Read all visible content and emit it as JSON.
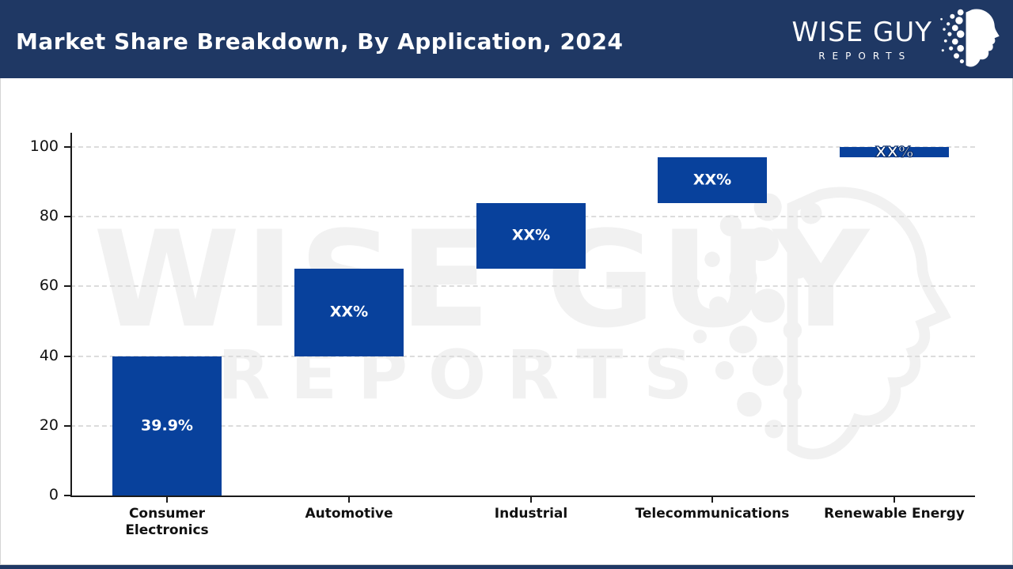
{
  "header": {
    "title": "Market Share Breakdown, By Application, 2024",
    "logo": {
      "brand_line1": "WISE GUY",
      "brand_line2": "REPORTS"
    }
  },
  "watermark": {
    "line1": "WISE GUY",
    "line2": "REPORTS"
  },
  "colors": {
    "header_navy": "#1f3864",
    "bar_blue": "#08419c",
    "bar_label_white": "#ffffff",
    "gridline_gray": "#dcdcdc",
    "watermark_gray": "#f1f1f1"
  },
  "chart_data": {
    "type": "bar",
    "subtype": "waterfall",
    "title": "Market Share Breakdown, By Application, 2024",
    "xlabel": "",
    "ylabel": "",
    "categories": [
      "Consumer Electronics",
      "Automotive",
      "Industrial",
      "Telecommunications",
      "Renewable Energy"
    ],
    "xtick_labels": [
      "Consumer\nElectronics",
      "Automotive",
      "Industrial",
      "Telecommunications",
      "Renewable Energy"
    ],
    "segments": [
      {
        "category": "Consumer Electronics",
        "start": 0,
        "end": 40,
        "height": 40,
        "label": "39.9%"
      },
      {
        "category": "Automotive",
        "start": 40,
        "end": 65,
        "height": 25,
        "label": "XX%"
      },
      {
        "category": "Industrial",
        "start": 65,
        "end": 84,
        "height": 19,
        "label": "XX%"
      },
      {
        "category": "Telecommunications",
        "start": 84,
        "end": 97,
        "height": 13,
        "label": "XX%"
      },
      {
        "category": "Renewable Energy",
        "start": 97,
        "end": 100,
        "height": 3,
        "label": "XX%"
      }
    ],
    "yticks": [
      0,
      20,
      40,
      60,
      80,
      100
    ],
    "ylim": [
      0,
      104
    ],
    "grid": "horizontal-dashed",
    "legend": "none",
    "bar_color": "#08419c",
    "bar_label_color": "#ffffff"
  }
}
